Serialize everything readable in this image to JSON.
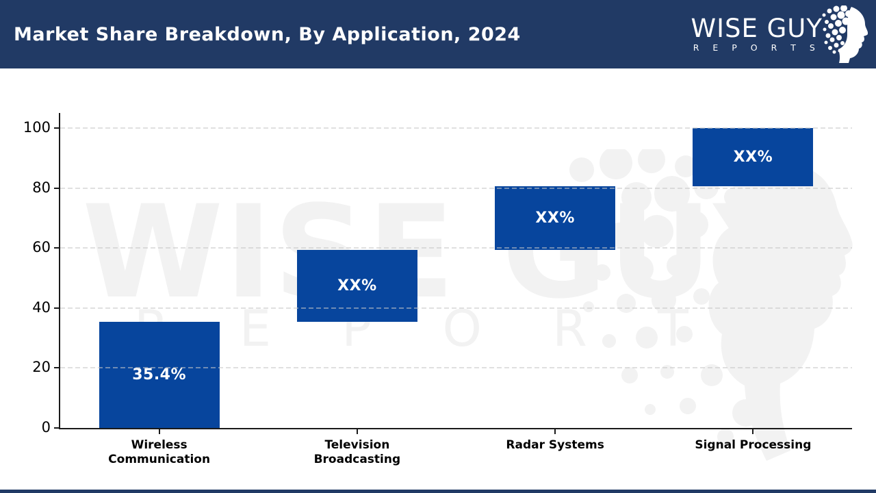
{
  "header": {
    "title": "Market Share Breakdown, By Application, 2024",
    "logo": {
      "name": "WISE GUY",
      "tagline": "R E P O R T S"
    }
  },
  "watermark": {
    "line1": "WISE GUY",
    "line2": "R E P O R T S"
  },
  "chart_data": {
    "type": "bar",
    "subtype": "waterfall",
    "title": "Market Share Breakdown, By Application, 2024",
    "categories": [
      "Wireless Communication",
      "Television Broadcasting",
      "Radar Systems",
      "Signal Processing"
    ],
    "categories_lines": [
      [
        "Wireless",
        "Communication"
      ],
      [
        "Television",
        "Broadcasting"
      ],
      [
        "Radar Systems"
      ],
      [
        "Signal Processing"
      ]
    ],
    "segments": [
      {
        "category": "Wireless Communication",
        "start": 0,
        "end": 35.4,
        "label": "35.4%"
      },
      {
        "category": "Television Broadcasting",
        "start": 35.4,
        "end": 59.4,
        "label": "XX%"
      },
      {
        "category": "Radar Systems",
        "start": 59.4,
        "end": 80.6,
        "label": "XX%"
      },
      {
        "category": "Signal Processing",
        "start": 80.6,
        "end": 100,
        "label": "XX%"
      }
    ],
    "y_ticks": [
      "0",
      "20",
      "40",
      "60",
      "80",
      "100"
    ],
    "y_tick_values": [
      0,
      20,
      40,
      60,
      80,
      100
    ],
    "ylim": [
      0,
      105
    ],
    "xlabel": "",
    "ylabel": "",
    "legend": "none",
    "grid": "horizontal dashed, drawn over bars",
    "bar_color": "#07459d",
    "bar_value_label_color": "#ffffff"
  },
  "colors": {
    "header_bg": "#213a65",
    "footer_bg": "#213a65",
    "bar": "#07459d",
    "grid": "#d9d9d9",
    "axis": "#1a1a1a",
    "watermark": "#f2f2f2"
  }
}
